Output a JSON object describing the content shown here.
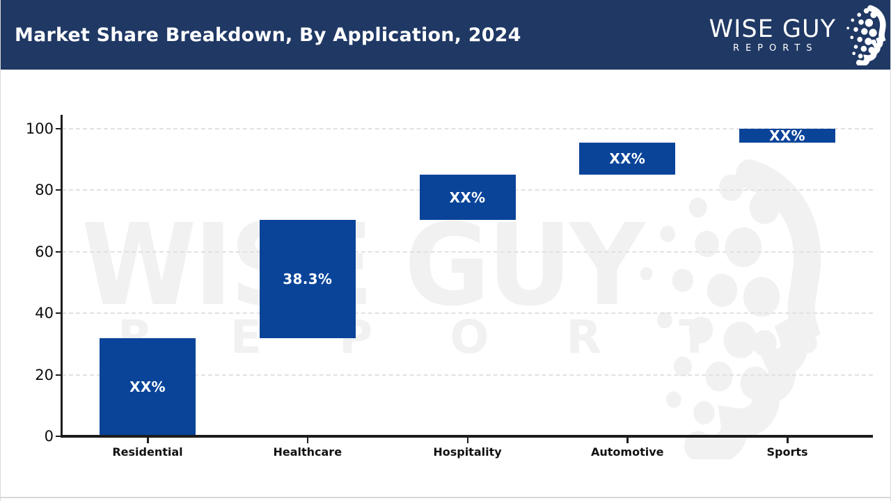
{
  "header": {
    "title": "Market Share Breakdown, By Application, 2024",
    "bg_color": "#1F3864",
    "logo": {
      "line1": "WISE GUY",
      "line2": "REPORTS"
    }
  },
  "watermark": {
    "line1": "WISE GUY",
    "line2": "R E P O R T S"
  },
  "chart_data": {
    "type": "bar",
    "subtype": "floating-waterfall",
    "title": "Market Share Breakdown, By Application, 2024",
    "categories": [
      "Residential",
      "Healthcare",
      "Hospitality",
      "Automotive",
      "Sports"
    ],
    "segments": [
      {
        "category": "Residential",
        "from": 0,
        "to": 32,
        "size": 32,
        "label": "XX%"
      },
      {
        "category": "Healthcare",
        "from": 32,
        "to": 70.3,
        "size": 38.3,
        "label": "38.3%"
      },
      {
        "category": "Hospitality",
        "from": 70.3,
        "to": 85,
        "size": 14.7,
        "label": "XX%"
      },
      {
        "category": "Automotive",
        "from": 85,
        "to": 95.5,
        "size": 10.5,
        "label": "XX%"
      },
      {
        "category": "Sports",
        "from": 95.5,
        "to": 100,
        "size": 4.5,
        "label": "XX%"
      }
    ],
    "yticks": [
      0,
      20,
      40,
      60,
      80,
      100
    ],
    "ylim": [
      0,
      105
    ],
    "xlabel": "",
    "ylabel": "",
    "grid": "horizontal-dashed",
    "legend": "none",
    "bar_color": "#0A4499",
    "bar_label_color": "#FFFFFF",
    "axis_color": "#1C1C1C"
  }
}
